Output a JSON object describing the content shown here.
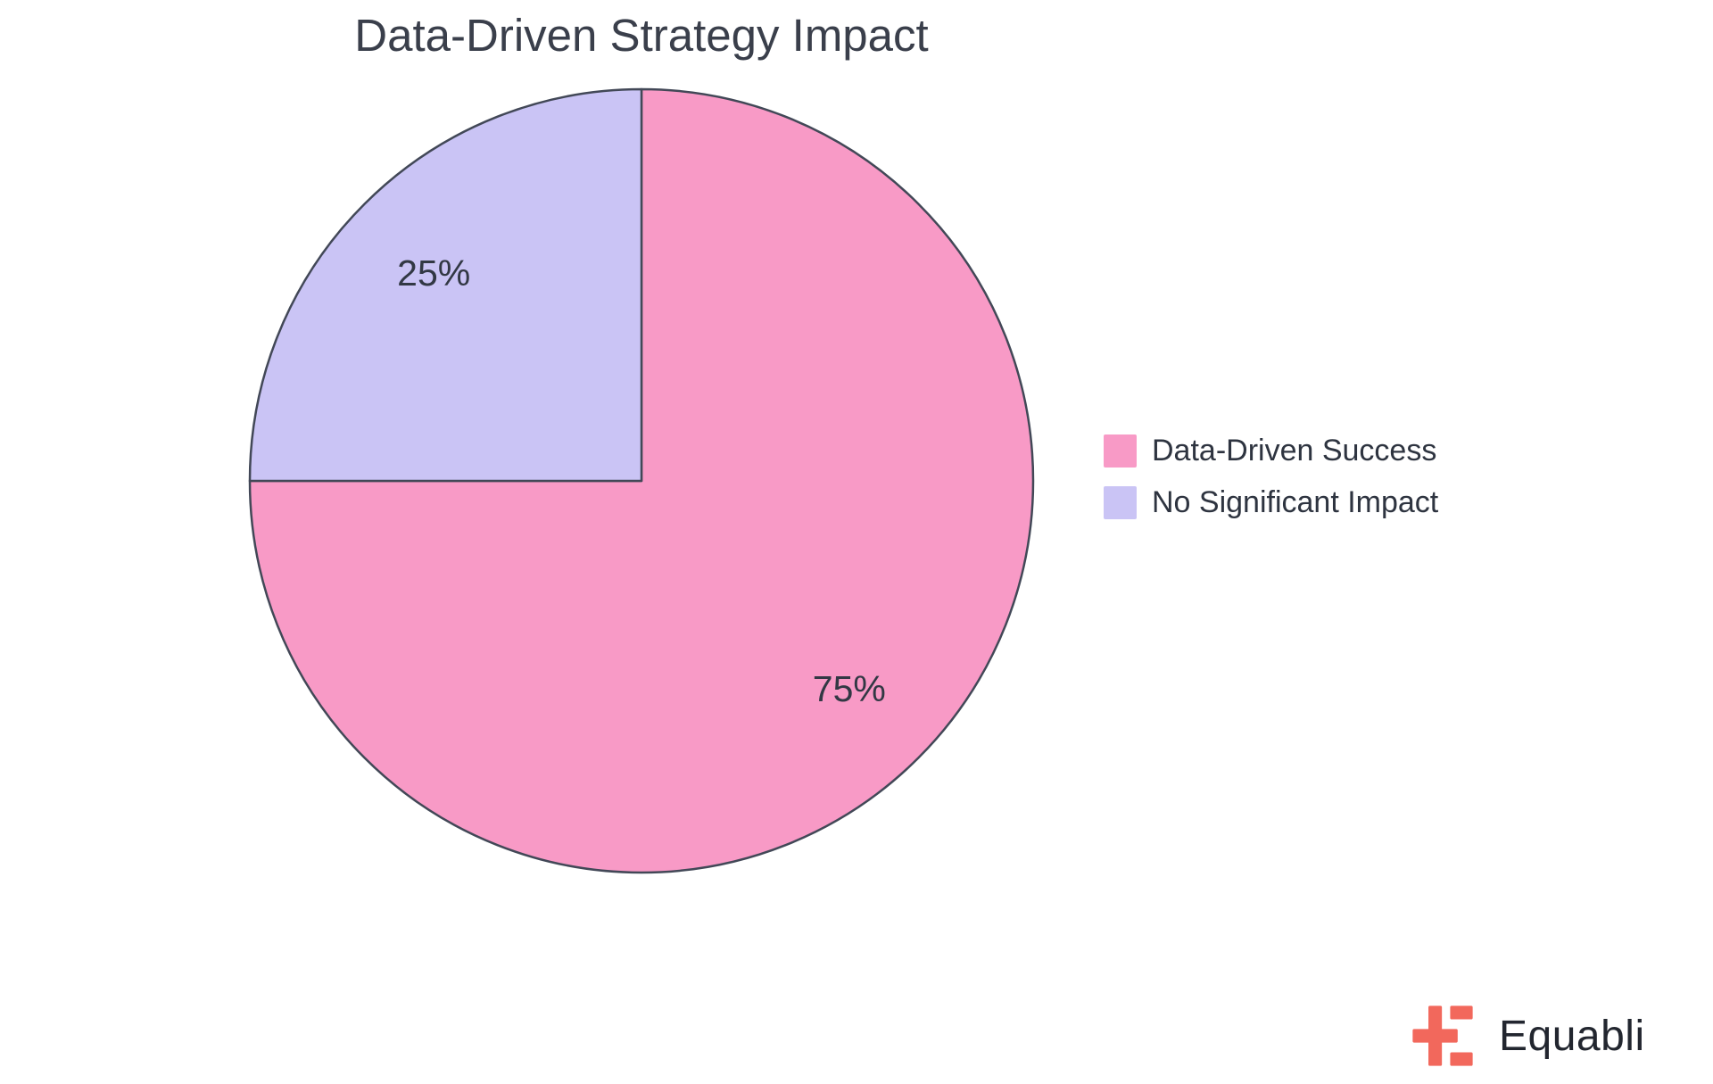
{
  "chart_data": {
    "type": "pie",
    "title": "Data-Driven Strategy Impact",
    "labels": [
      "Data-Driven Success",
      "No Significant Impact"
    ],
    "values": [
      75,
      25
    ],
    "percent_labels": [
      "75%",
      "25%"
    ],
    "colors": [
      "#F89AC6",
      "#CAC4F5"
    ],
    "stroke_color": "#424857",
    "stroke_width": 2.5,
    "start_angle": "top",
    "direction": "clockwise",
    "legend_position": "right",
    "label_color": "#323844",
    "label_radius_fraction": 0.75
  },
  "title": "Data-Driven Strategy Impact",
  "legend": {
    "items": [
      {
        "label": "Data-Driven Success",
        "color": "#F89AC6"
      },
      {
        "label": "No Significant Impact",
        "color": "#CAC4F5"
      }
    ]
  },
  "branding": {
    "name": "Equabli",
    "logo_color": "#F2685C",
    "text_color": "#22262F"
  }
}
